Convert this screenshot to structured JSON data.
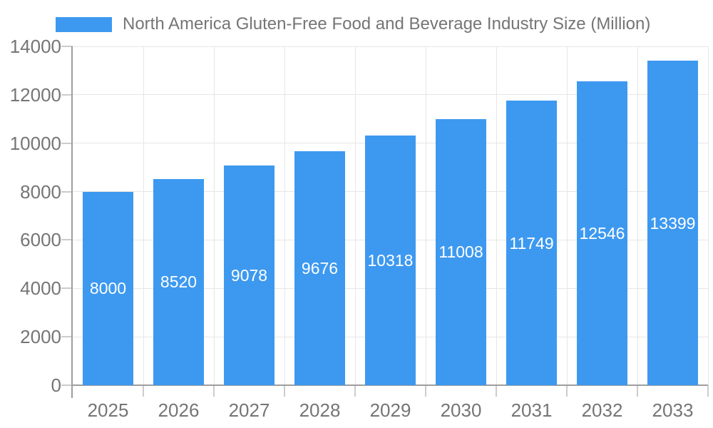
{
  "chart_data": {
    "type": "bar",
    "title": "North America Gluten-Free Food and Beverage Industry Size (Million)",
    "categories": [
      "2025",
      "2026",
      "2027",
      "2028",
      "2029",
      "2030",
      "2031",
      "2032",
      "2033"
    ],
    "values": [
      8000,
      8520,
      9078,
      9676,
      10318,
      11008,
      11749,
      12546,
      13399
    ],
    "xlabel": "",
    "ylabel": "",
    "ylim": [
      0,
      14000
    ],
    "y_ticks": [
      0,
      2000,
      4000,
      6000,
      8000,
      10000,
      12000,
      14000
    ],
    "grid": true,
    "legend_position": "top",
    "bar_value_labels_inside": true,
    "colors": {
      "bar": "#3d99f0",
      "bar_label": "#ffffff",
      "axis_text": "#757575",
      "legend_text": "#757575",
      "grid": "#e6e6e6",
      "axis_line": "#9e9e9e",
      "tick": "#cccccc",
      "background": "#ffffff"
    }
  }
}
